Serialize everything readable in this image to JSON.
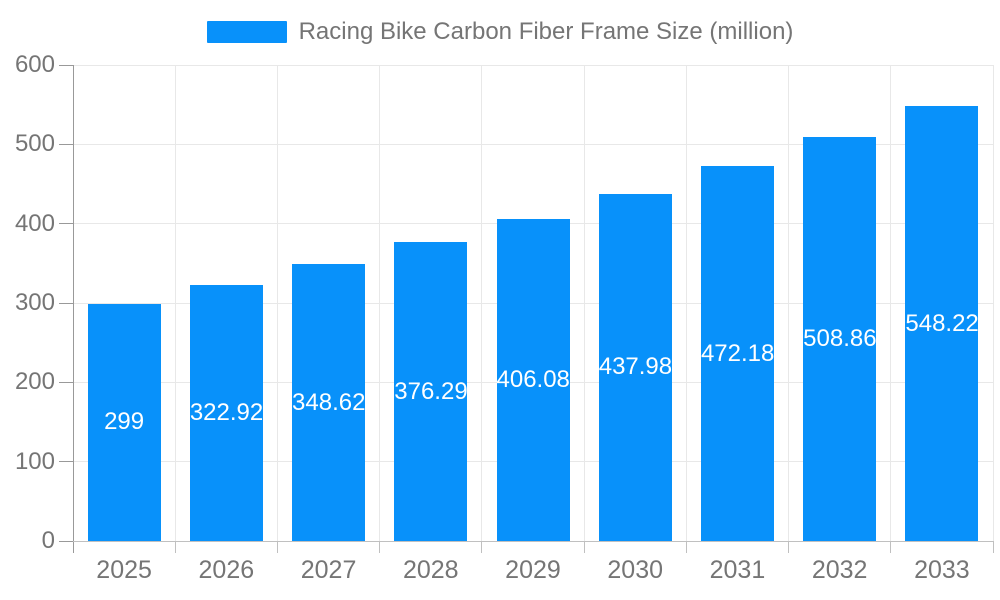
{
  "legend": {
    "label": "Racing Bike Carbon Fiber Frame Size (million)"
  },
  "chart_data": {
    "type": "bar",
    "title": "Racing Bike Carbon Fiber Frame Size (million)",
    "categories": [
      "2025",
      "2026",
      "2027",
      "2028",
      "2029",
      "2030",
      "2031",
      "2032",
      "2033"
    ],
    "values": [
      299,
      322.92,
      348.62,
      376.29,
      406.08,
      437.98,
      472.18,
      508.86,
      548.22
    ],
    "value_labels": [
      "299",
      "322.92",
      "348.62",
      "376.29",
      "406.08",
      "437.98",
      "472.18",
      "508.86",
      "548.22"
    ],
    "xlabel": "",
    "ylabel": "",
    "ylim": [
      0,
      600
    ],
    "y_ticks": [
      0,
      100,
      200,
      300,
      400,
      500,
      600
    ],
    "grid": true,
    "legend_position": "top-center",
    "bar_color": "#0891fa",
    "value_label_color": "#ffffff"
  },
  "colors": {
    "bar": "#0891fa",
    "grid_line": "#e8e8e8",
    "y_axis_line": "#999999",
    "x_axis_line": "#c0c0c0",
    "tick_text": "#757575",
    "legend_text": "#757575",
    "background": "#ffffff"
  }
}
